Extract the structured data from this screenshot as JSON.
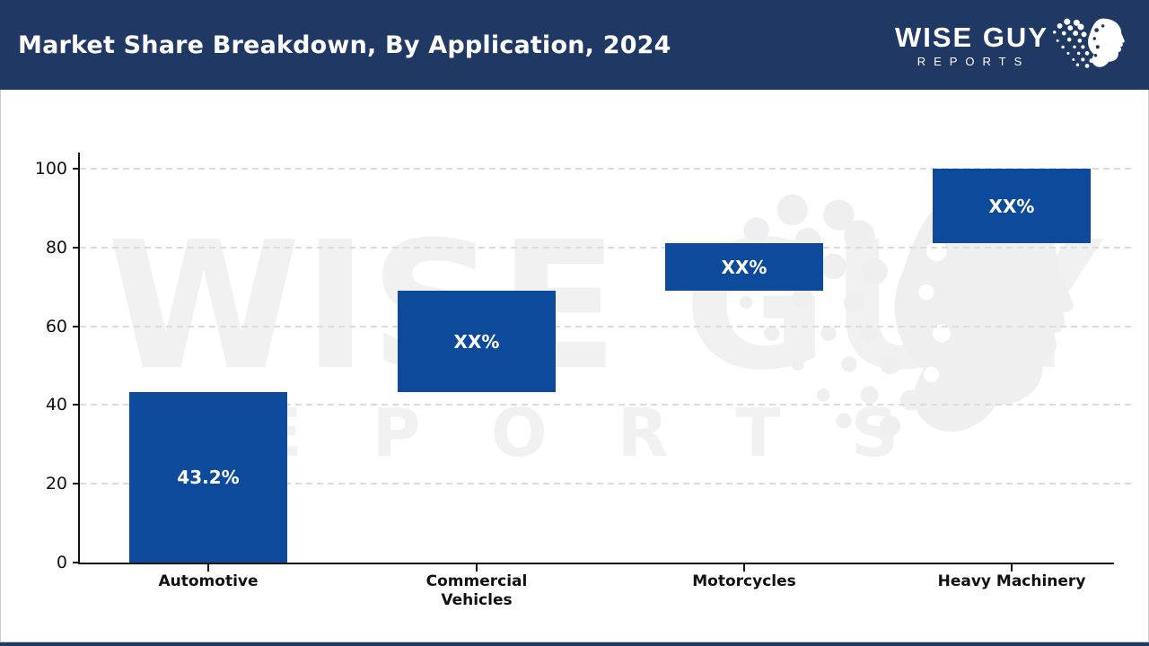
{
  "header": {
    "title": "Market Share Breakdown, By Application, 2024",
    "logo": {
      "name": "WISE GUY",
      "sub": "REPORTS"
    }
  },
  "watermark": {
    "line1": "WISE GUY",
    "line2": "REPORTS"
  },
  "chart_data": {
    "type": "waterfall",
    "title": "Market Share Breakdown, By Application, 2024",
    "categories": [
      "Automotive",
      "Commercial\nVehicles",
      "Motorcycles",
      "Heavy Machinery"
    ],
    "series": [
      {
        "name": "Automotive",
        "start": 0,
        "end": 43.2,
        "label": "43.2%"
      },
      {
        "name": "Commercial Vehicles",
        "start": 43.2,
        "end": 69,
        "label": "XX%"
      },
      {
        "name": "Motorcycles",
        "start": 69,
        "end": 81,
        "label": "XX%"
      },
      {
        "name": "Heavy Machinery",
        "start": 81,
        "end": 100,
        "label": "XX%"
      }
    ],
    "ylim": [
      0,
      100
    ],
    "yticks": [
      0,
      20,
      40,
      60,
      80,
      100
    ],
    "grid": "horizontal-dashed",
    "legend": "none",
    "bar_color": "#0e4a9c",
    "bar_label_color": "#ffffff",
    "axis_color": "#111111",
    "grid_color": "#dcdcdc"
  },
  "colors": {
    "header_bg": "#203864",
    "footer_bg": "#203864",
    "watermark": "#f1f1f1"
  }
}
